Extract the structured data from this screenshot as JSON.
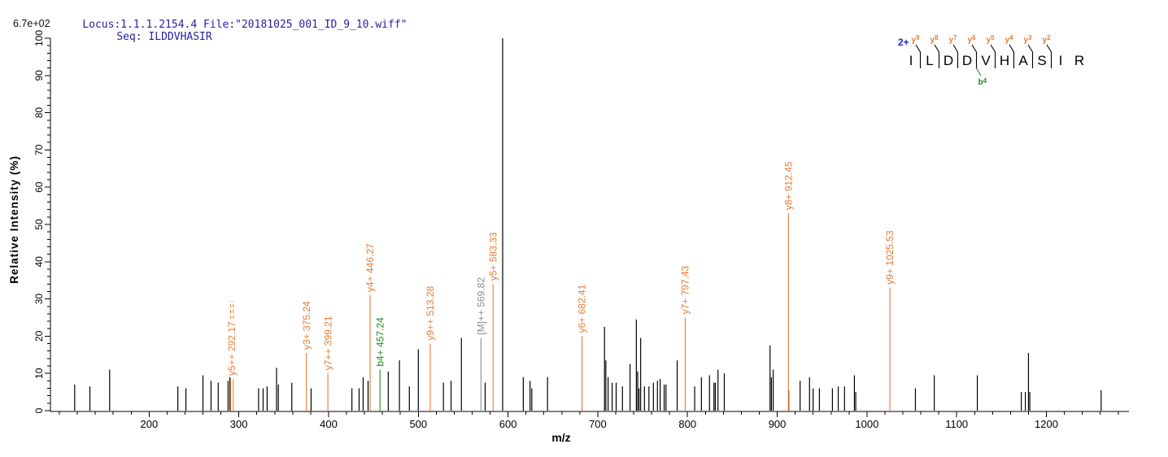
{
  "header": {
    "locus_file": "Locus:1.1.1.2154.4 File:\"20181025_001_ID_9_10.wiff\"",
    "seq": "Seq: ILDDVHASIR"
  },
  "colors": {
    "header_text": "#2323a0",
    "annotation_orange": "#e87a33",
    "annotation_green": "#1e8a1e",
    "annotation_gray": "#8c8c8c",
    "peak_black": "#000000",
    "charge_blue": "#2424c8"
  },
  "chart_data": {
    "type": "bar",
    "subtype": "ms2-spectrum-stick-plot",
    "xlabel": "m/z",
    "ylabel": "Relative Intensity (%)",
    "max_intensity_label": "6.7e+02",
    "xlim": [
      90,
      1292
    ],
    "ylim": [
      0,
      100
    ],
    "x_major_tick_start": 200,
    "x_major_tick_end": 1200,
    "x_major_tick_step": 100,
    "x_minor_tick_step": 20,
    "y_major_tick_step": 10,
    "y_minor_tick_step": 2,
    "grid": false,
    "peaks": [
      [
        117,
        7
      ],
      [
        134,
        6.5
      ],
      [
        156,
        11
      ],
      [
        232,
        6.5
      ],
      [
        241,
        6
      ],
      [
        260,
        9.5
      ],
      [
        269,
        8
      ],
      [
        277,
        7.5
      ],
      [
        288,
        8
      ],
      [
        290,
        9
      ],
      [
        322,
        6
      ],
      [
        327,
        6
      ],
      [
        331.5,
        6.5
      ],
      [
        342,
        11.5
      ],
      [
        344,
        7
      ],
      [
        359,
        7.5
      ],
      [
        380.5,
        6
      ],
      [
        426,
        6
      ],
      [
        434,
        6
      ],
      [
        438.5,
        9
      ],
      [
        444,
        8
      ],
      [
        466.5,
        10.5
      ],
      [
        479,
        13.5
      ],
      [
        490,
        6.5
      ],
      [
        500,
        16.5
      ],
      [
        528,
        7.5
      ],
      [
        536.5,
        8
      ],
      [
        548,
        19.5
      ],
      [
        574.5,
        7.5
      ],
      [
        594,
        100
      ],
      [
        617,
        9
      ],
      [
        624.5,
        8
      ],
      [
        626.5,
        6
      ],
      [
        644,
        9
      ],
      [
        707.5,
        22.5
      ],
      [
        709,
        13.5
      ],
      [
        711.5,
        9
      ],
      [
        716,
        7.5
      ],
      [
        720.5,
        7.5
      ],
      [
        727.5,
        6.5
      ],
      [
        736,
        12.5
      ],
      [
        743,
        24.5
      ],
      [
        744.5,
        10.5
      ],
      [
        746,
        6
      ],
      [
        747.8,
        19.5
      ],
      [
        752,
        6.5
      ],
      [
        757,
        6.5
      ],
      [
        762,
        7.5
      ],
      [
        766.5,
        8
      ],
      [
        769.5,
        8.5
      ],
      [
        774,
        7
      ],
      [
        776,
        7
      ],
      [
        788.5,
        13.5
      ],
      [
        808,
        6.5
      ],
      [
        815.5,
        9
      ],
      [
        824.5,
        9.5
      ],
      [
        829.5,
        7.5
      ],
      [
        831,
        7.5
      ],
      [
        834,
        11
      ],
      [
        841,
        10
      ],
      [
        892,
        17.5
      ],
      [
        893.5,
        9
      ],
      [
        895.5,
        11
      ],
      [
        912.8,
        5.5
      ],
      [
        925.5,
        8
      ],
      [
        936,
        9
      ],
      [
        940,
        6
      ],
      [
        947,
        6
      ],
      [
        961.5,
        6
      ],
      [
        968,
        6.5
      ],
      [
        975,
        6.5
      ],
      [
        986,
        9.5
      ],
      [
        987.5,
        5
      ],
      [
        1054,
        6
      ],
      [
        1075,
        9.5
      ],
      [
        1123,
        9.5
      ],
      [
        1172,
        5
      ],
      [
        1176.5,
        5
      ],
      [
        1180,
        15.5
      ],
      [
        1181.5,
        5
      ],
      [
        1261,
        5.5
      ]
    ],
    "annotations": [
      {
        "ion": "y5++",
        "label": "y5++ 292.17",
        "mz": 292.17,
        "pct": 8.5,
        "color_key": "annotation_orange",
        "double_line": true,
        "dashed_top": true
      },
      {
        "ion": "y3+",
        "label": "y3+ 375.24",
        "mz": 375.24,
        "pct": 15.5,
        "color_key": "annotation_orange"
      },
      {
        "ion": "y7++",
        "label": "y7++ 399.21",
        "mz": 399.21,
        "pct": 10,
        "color_key": "annotation_orange"
      },
      {
        "ion": "y4+",
        "label": "y4+ 446.27",
        "mz": 446.27,
        "pct": 31,
        "color_key": "annotation_orange"
      },
      {
        "ion": "b4+",
        "label": "b4+ 457.24",
        "mz": 457.24,
        "pct": 11,
        "color_key": "annotation_green"
      },
      {
        "ion": "y9++",
        "label": "y9++ 513.28",
        "mz": 513.28,
        "pct": 18,
        "color_key": "annotation_orange"
      },
      {
        "ion": "[M]++",
        "label": "[M]++ 569.82",
        "mz": 569.82,
        "pct": 19.5,
        "color_key": "annotation_gray"
      },
      {
        "ion": "y5+",
        "label": "y5+ 583.33",
        "mz": 583.33,
        "pct": 34,
        "color_key": "annotation_orange"
      },
      {
        "ion": "y6+",
        "label": "y6+ 682.41",
        "mz": 682.41,
        "pct": 20,
        "color_key": "annotation_orange"
      },
      {
        "ion": "y7+",
        "label": "y7+ 797.43",
        "mz": 797.43,
        "pct": 25,
        "color_key": "annotation_orange"
      },
      {
        "ion": "y8+",
        "label": "y8+ 912.45",
        "mz": 912.45,
        "pct": 53,
        "color_key": "annotation_orange"
      },
      {
        "ion": "y9+",
        "label": "y9+ 1025.53",
        "mz": 1025.53,
        "pct": 33,
        "color_key": "annotation_orange"
      }
    ],
    "sequence": {
      "charge_label": "2+",
      "residues": [
        "I",
        "L",
        "D",
        "D",
        "V",
        "H",
        "A",
        "S",
        "I",
        "R"
      ],
      "y_ion_labels": [
        "y9",
        "y8",
        "y7",
        "y6",
        "y5",
        "y4",
        "y3",
        "y2"
      ],
      "b_ion_label": "b4",
      "b_ion_break_index": 3
    }
  }
}
